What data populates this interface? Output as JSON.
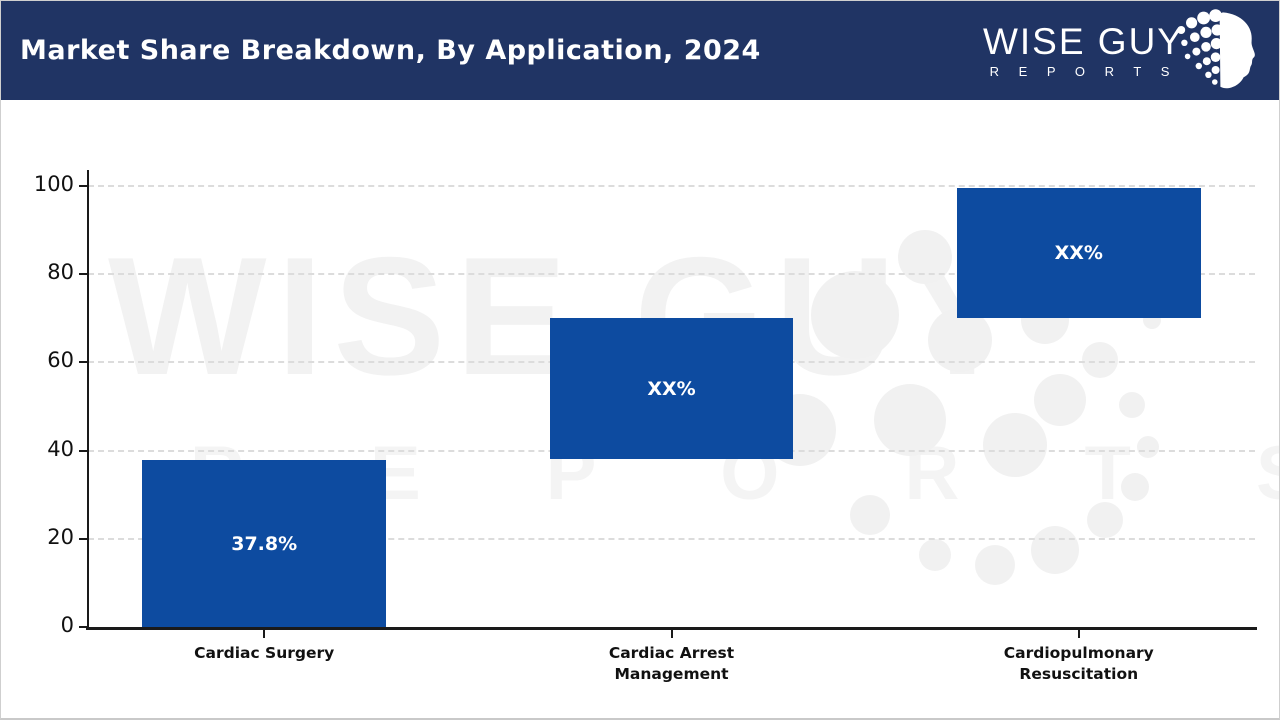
{
  "header": {
    "title": "Market Share Breakdown, By Application, 2024",
    "bg_color": "#203464",
    "logo": {
      "line1": "WISE GUY",
      "line2": "R E P O R T S"
    }
  },
  "watermark": {
    "line1": "WISE GUY",
    "line2": "R E P O R T S"
  },
  "chart_data": {
    "type": "bar",
    "subtype": "floating-waterfall",
    "title": "Market Share Breakdown, By Application, 2024",
    "categories": [
      "Cardiac Surgery",
      "Cardiac Arrest\nManagement",
      "Cardiopulmonary\nResuscitation"
    ],
    "series": [
      {
        "name": "Market Share %",
        "segments": [
          {
            "category": "Cardiac Surgery",
            "from": 0,
            "to": 37.8,
            "label": "37.8%"
          },
          {
            "category": "Cardiac Arrest Management",
            "from": 38,
            "to": 70,
            "label": "XX%"
          },
          {
            "category": "Cardiopulmonary Resuscitation",
            "from": 70,
            "to": 99.5,
            "label": "XX%"
          }
        ]
      }
    ],
    "xlabel": "",
    "ylabel": "",
    "yticks": [
      0,
      20,
      40,
      60,
      80,
      100
    ],
    "ylim": [
      0,
      104
    ],
    "grid": "horizontal-dashed",
    "legend": "none",
    "bar_color": "#0d4ba0",
    "label_color": "#ffffff",
    "axis_color": "#1a1a1a",
    "gridline_color": "#dcdcdc"
  }
}
